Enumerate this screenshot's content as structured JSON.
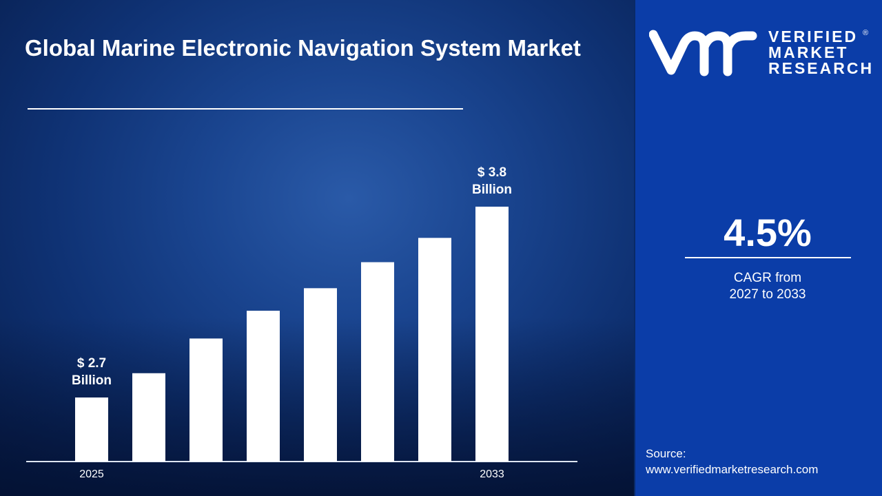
{
  "title": "Global Marine Electronic Navigation System Market",
  "brand": {
    "logo_mark": "vmr",
    "lines": [
      "VERIFIED",
      "MARKET",
      "RESEARCH"
    ],
    "registered": "®",
    "panel_color": "#0b3da8"
  },
  "cagr": {
    "value": "4.5%",
    "label_line1": "CAGR from",
    "label_line2": "2027 to 2033"
  },
  "source": {
    "label": "Source:",
    "url": "www.verifiedmarketresearch.com"
  },
  "chart_data": {
    "type": "bar",
    "title": "Global Marine Electronic Navigation System Market",
    "categories": [
      "2025",
      "",
      "",
      "",
      "",
      "",
      "",
      "2033"
    ],
    "values": [
      2.7,
      2.84,
      3.04,
      3.2,
      3.33,
      3.48,
      3.62,
      3.8
    ],
    "unit": "USD Billion",
    "data_labels": [
      {
        "index": 0,
        "line1": "$ 2.7",
        "line2": "Billion"
      },
      {
        "index": 7,
        "line1": "$ 3.8",
        "line2": "Billion"
      }
    ],
    "bar_color": "#ffffff",
    "grid": false,
    "xlabel": "",
    "ylabel": ""
  }
}
